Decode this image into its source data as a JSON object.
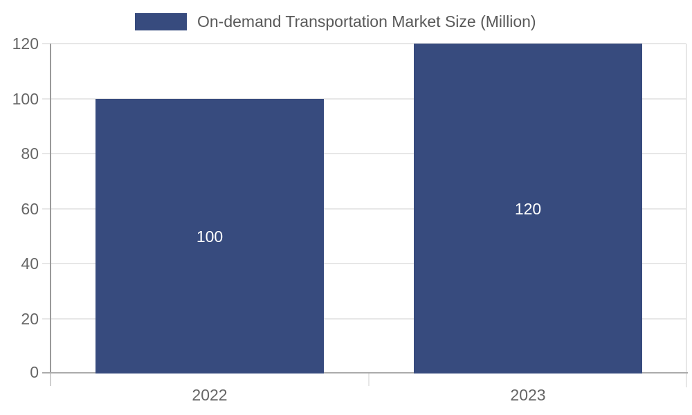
{
  "chart_data": {
    "type": "bar",
    "title": "On-demand Transportation Market Size (Million)",
    "categories": [
      "2022",
      "2023"
    ],
    "series": [
      {
        "name": "On-demand Transportation Market Size (Million)",
        "values": [
          100,
          120
        ]
      }
    ],
    "value_labels": [
      "100",
      "120"
    ],
    "xlabel": "",
    "ylabel": "",
    "ylim": [
      0,
      120
    ],
    "yticks": [
      0,
      20,
      40,
      60,
      80,
      100,
      120
    ],
    "grid": true,
    "legend_position": "top-center"
  },
  "colors": {
    "bar": "#374b7e",
    "title_text": "#595959",
    "tick_label_text": "#666666",
    "bar_value_text": "#ffffff",
    "gridline": "#e7e7e7",
    "y_axis_line": "#9a9a9a",
    "x_axis_line": "#ababab",
    "below_axis_tick": "#cfcfcf",
    "background": "#ffffff"
  }
}
